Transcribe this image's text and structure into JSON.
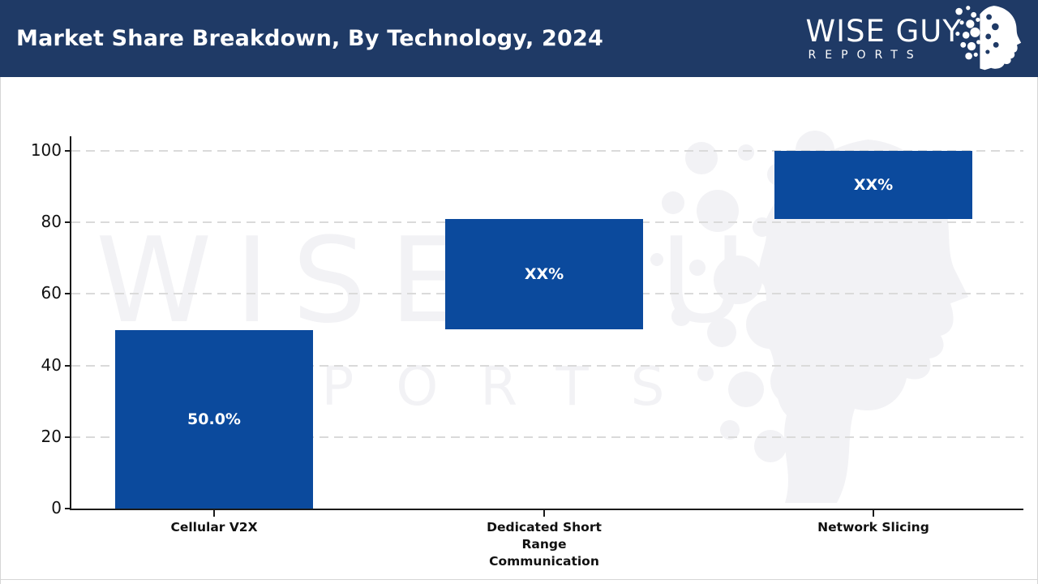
{
  "header": {
    "title": "Market Share Breakdown, By Technology, 2024",
    "logo": {
      "brand": "WISE GUY",
      "sub": "REPORTS"
    }
  },
  "watermark": {
    "brand": "WISE GUY",
    "sub": "REPORTS"
  },
  "chart_data": {
    "type": "bar",
    "variant": "floating-segment (waterfall-style market share)",
    "title": "Market Share Breakdown, By Technology, 2024",
    "categories": [
      "Cellular V2X",
      "Dedicated Short Range Communication",
      "Network Slicing"
    ],
    "category_lines": [
      [
        "Cellular V2X"
      ],
      [
        "Dedicated Short",
        "Range",
        "Communication"
      ],
      [
        "Network Slicing"
      ]
    ],
    "bars": [
      {
        "category": "Cellular V2X",
        "start": 0,
        "end": 50,
        "label": "50.0%"
      },
      {
        "category": "Dedicated Short Range Communication",
        "start": 50,
        "end": 81,
        "label": "XX%"
      },
      {
        "category": "Network Slicing",
        "start": 81,
        "end": 100,
        "label": "XX%"
      }
    ],
    "yticks": [
      0,
      20,
      40,
      60,
      80,
      100
    ],
    "ylim": [
      0,
      104
    ],
    "xlabel": "",
    "ylabel": "",
    "grid": "horizontal-dashed",
    "legend": null,
    "bar_color": "#0b4a9d",
    "bar_label_color": "#ffffff"
  },
  "colors": {
    "header_bg": "#1f3a66",
    "bar": "#0b4a9d",
    "grid": "#dadada",
    "axis": "#1a1a1a",
    "tick_text": "#111111",
    "watermark": "#f2f2f5",
    "panel_line": "#d6d6d6"
  }
}
